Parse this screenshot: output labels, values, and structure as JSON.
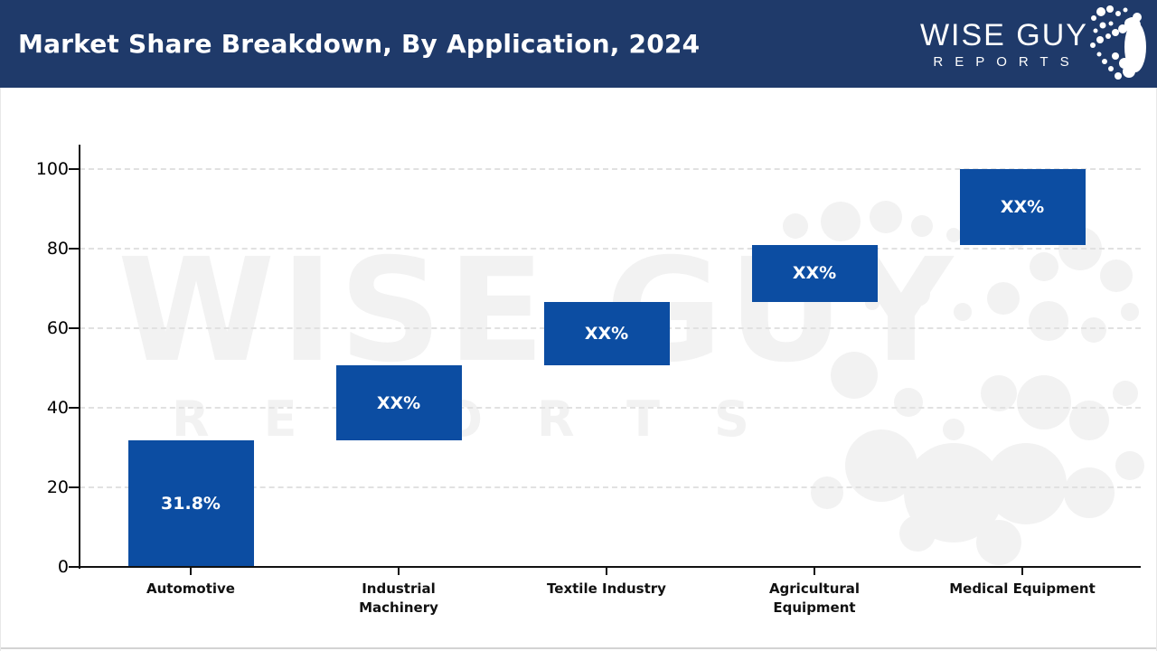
{
  "header": {
    "title": "Market Share Breakdown, By Application, 2024",
    "logo": {
      "line1": "WISE GUY",
      "line2": "REPORTS",
      "icon": "dotted-face-profile"
    }
  },
  "watermark": {
    "line1": "WISE GUY",
    "line2": "REPORTS",
    "icon": "dotted-face-profile"
  },
  "colors": {
    "header_bg": "#1f3a6a",
    "bar": "#0c4da2",
    "bar_label": "#ffffff",
    "axis": "#111111",
    "gridline": "#e1e1e1",
    "watermark": "#f2f2f2"
  },
  "chart_data": {
    "type": "bar",
    "variant": "waterfall",
    "title": "Market Share Breakdown, By Application, 2024",
    "categories": [
      "Automotive",
      "Industrial Machinery",
      "Textile Industry",
      "Agricultural Equipment",
      "Medical Equipment"
    ],
    "categories_lines": [
      [
        "Automotive"
      ],
      [
        "Industrial",
        "Machinery"
      ],
      [
        "Textile Industry"
      ],
      [
        "Agricultural",
        "Equipment"
      ],
      [
        "Medical Equipment"
      ]
    ],
    "segments": [
      {
        "category": "Automotive",
        "start": 0,
        "end": 31.8,
        "label": "31.8%"
      },
      {
        "category": "Industrial Machinery",
        "start": 31.8,
        "end": 50.6,
        "label": "XX%"
      },
      {
        "category": "Textile Industry",
        "start": 50.6,
        "end": 66.6,
        "label": "XX%"
      },
      {
        "category": "Agricultural Equipment",
        "start": 66.6,
        "end": 80.9,
        "label": "XX%"
      },
      {
        "category": "Medical Equipment",
        "start": 80.9,
        "end": 100,
        "label": "XX%"
      }
    ],
    "values": [
      31.8,
      18.8,
      16.0,
      14.3,
      19.1
    ],
    "y_ticks": [
      0,
      20,
      40,
      60,
      80,
      100
    ],
    "ylim": [
      0,
      106
    ],
    "xlabel": "",
    "ylabel": "",
    "grid": "horizontal-dashed",
    "legend": "none"
  }
}
